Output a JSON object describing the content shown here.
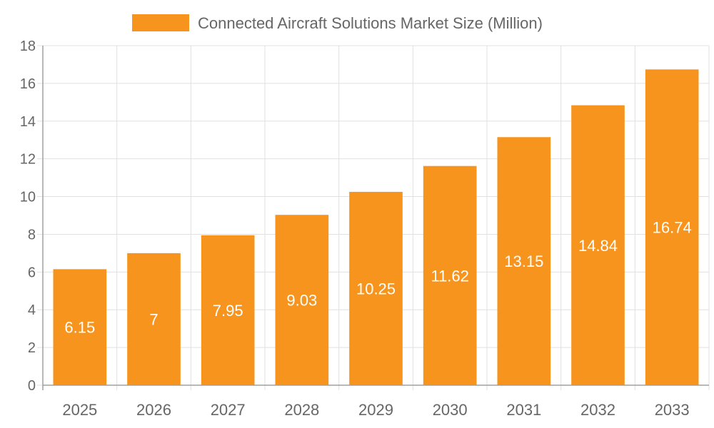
{
  "chart_data": {
    "type": "bar",
    "categories": [
      "2025",
      "2026",
      "2027",
      "2028",
      "2029",
      "2030",
      "2031",
      "2032",
      "2033"
    ],
    "series": [
      {
        "name": "Connected Aircraft Solutions Market Size (Million)",
        "values": [
          6.15,
          7,
          7.95,
          9.03,
          10.25,
          11.62,
          13.15,
          14.84,
          16.74
        ]
      }
    ],
    "data_labels": [
      "6.15",
      "7",
      "7.95",
      "9.03",
      "10.25",
      "11.62",
      "13.15",
      "14.84",
      "16.74"
    ],
    "yticks": [
      "0",
      "2",
      "4",
      "6",
      "8",
      "10",
      "12",
      "14",
      "16",
      "18"
    ],
    "ylim": [
      0,
      18
    ],
    "grid": true,
    "legend": "top",
    "colors": {
      "bar": "#F7941E",
      "grid": "#e0e0e0",
      "axis": "#a0a0a0",
      "text": "#666666",
      "label": "#ffffff"
    }
  }
}
